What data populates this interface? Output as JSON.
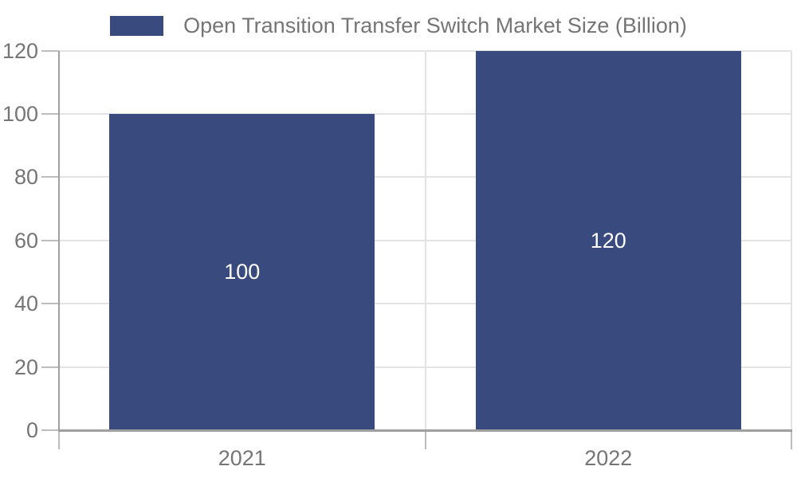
{
  "chart_data": {
    "type": "bar",
    "title": "Open Transition Transfer Switch Market Size (Billion)",
    "legend": {
      "position": "top",
      "entries": [
        "Open Transition Transfer Switch Market Size (Billion)"
      ]
    },
    "categories": [
      "2021",
      "2022"
    ],
    "series": [
      {
        "name": "Open Transition Transfer Switch Market Size (Billion)",
        "values": [
          100,
          120
        ]
      }
    ],
    "values": [
      100,
      120
    ],
    "value_labels": [
      "100",
      "120"
    ],
    "xlabel": "",
    "ylabel": "",
    "ylim": [
      0,
      120
    ],
    "yticks": [
      0,
      20,
      40,
      60,
      80,
      100,
      120
    ],
    "grid": true,
    "colors": {
      "bar": "#384a7e",
      "label_text": "#757575",
      "value_label_text": "#ffffff",
      "gridline": "#e3e3e3",
      "axis_line": "#a0a0a0",
      "tick": "#bdbdbd",
      "background": "#ffffff"
    }
  }
}
